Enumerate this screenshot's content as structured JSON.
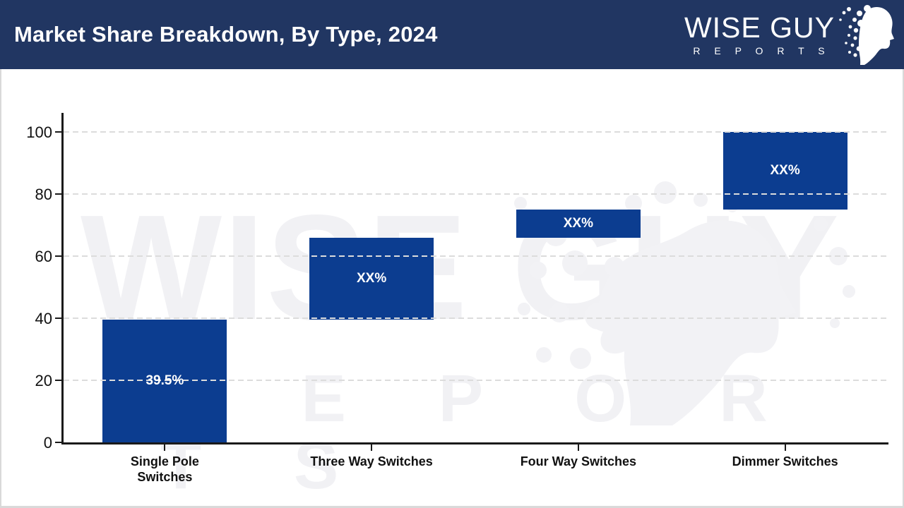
{
  "header": {
    "title": "Market Share Breakdown, By Type, 2024",
    "logo": {
      "name": "WISE GUY",
      "sub": "R E P O R T S"
    }
  },
  "watermark": {
    "line1": "WISE GUY",
    "line2": "R E P O R T S"
  },
  "colors": {
    "header_bg": "#213662",
    "bar": "#0c3d90",
    "bar_label": "#ffffff",
    "grid": "#dcdcdc",
    "axis": "#1a1a1a",
    "watermark": "#f1f1f4"
  },
  "chart_data": {
    "type": "bar",
    "subtype": "waterfall",
    "title": "Market Share Breakdown, By Type, 2024",
    "xlabel": "",
    "ylabel": "",
    "categories": [
      "Single Pole\nSwitches",
      "Three Way Switches",
      "Four Way Switches",
      "Dimmer Switches"
    ],
    "segments": [
      {
        "category": "Single Pole Switches",
        "start": 0,
        "end": 39.5,
        "value": 39.5,
        "label": "39.5%"
      },
      {
        "category": "Three Way Switches",
        "start": 39.5,
        "end": 66,
        "value": 26.5,
        "label": "XX%"
      },
      {
        "category": "Four Way Switches",
        "start": 66,
        "end": 75,
        "value": 9,
        "label": "XX%"
      },
      {
        "category": "Dimmer Switches",
        "start": 75,
        "end": 100,
        "value": 25,
        "label": "XX%"
      }
    ],
    "yticks": [
      0,
      20,
      40,
      60,
      80,
      100
    ],
    "ylim": [
      0,
      105
    ],
    "grid": "horizontal-dashed",
    "legend": "none",
    "bar_color": "#0c3d90"
  }
}
